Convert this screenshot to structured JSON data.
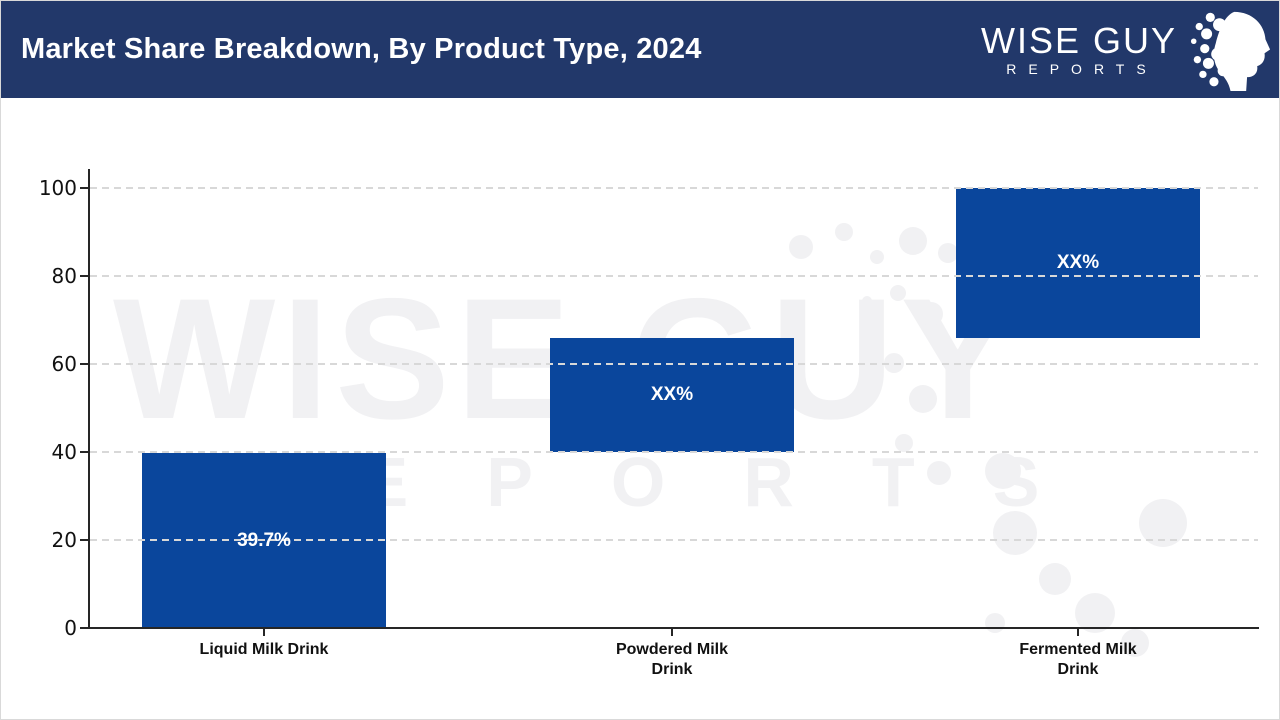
{
  "header": {
    "title": "Market Share Breakdown, By Product Type, 2024",
    "logo": {
      "wordmark": "WISE GUY",
      "subtext": "REPORTS"
    }
  },
  "watermark": {
    "line1": "WISE GUY",
    "line2": "REPORTS"
  },
  "colors": {
    "header_bg": "#22386a",
    "bar": "#0a469c",
    "bar_label_text": "#ffffff",
    "grid": "#d8d8d8",
    "axis": "#262626",
    "tick_text": "#111111",
    "watermark": "#f1f1f3"
  },
  "chart_data": {
    "type": "bar",
    "subtype": "floating-segment-bar",
    "title": "Market Share Breakdown, By Product Type, 2024",
    "categories": [
      "Liquid Milk Drink",
      "Powdered Milk Drink",
      "Fermented Milk Drink"
    ],
    "category_lines": [
      [
        "Liquid Milk Drink"
      ],
      [
        "Powdered Milk",
        "Drink"
      ],
      [
        "Fermented Milk",
        "Drink"
      ]
    ],
    "segments": [
      {
        "category": "Liquid Milk Drink",
        "from": 0,
        "to": 39.7,
        "label": "39.7%"
      },
      {
        "category": "Powdered Milk Drink",
        "from": 40,
        "to": 66,
        "label": "XX%"
      },
      {
        "category": "Fermented Milk Drink",
        "from": 66,
        "to": 100,
        "label": "XX%"
      }
    ],
    "xlabel": "",
    "ylabel": "",
    "ylim": [
      0,
      100
    ],
    "yticks": [
      0,
      20,
      40,
      60,
      80,
      100
    ],
    "grid": "horizontal-dashed",
    "legend": "none"
  }
}
